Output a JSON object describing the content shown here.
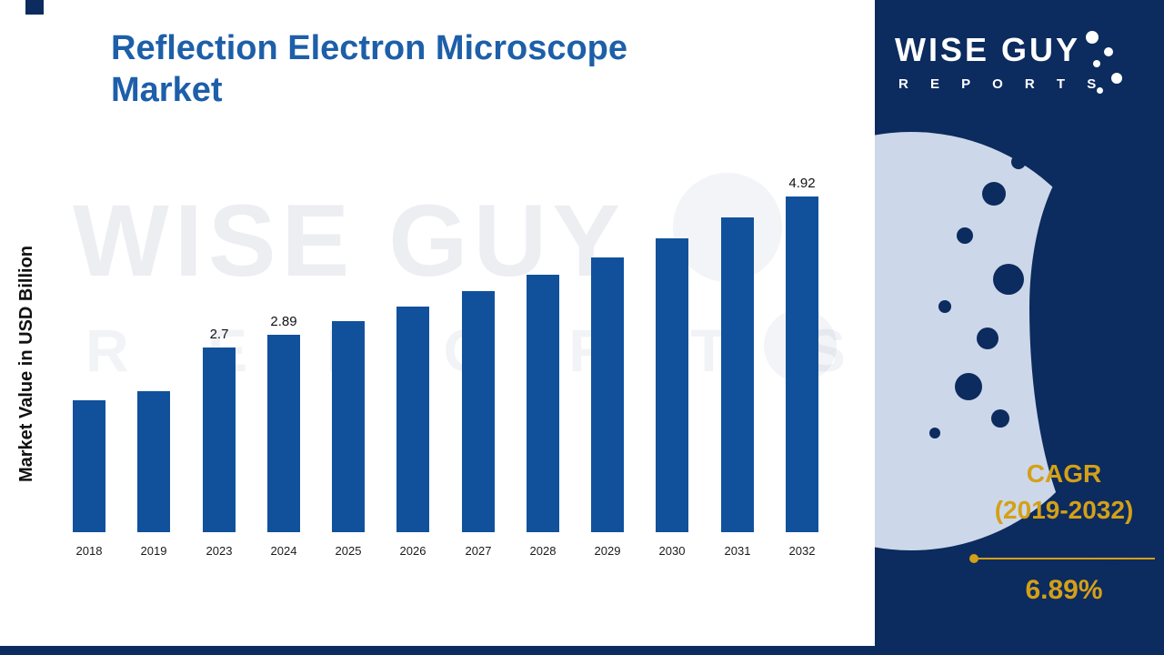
{
  "title": {
    "line1": "Reflection Electron Microscope",
    "line2": "Market"
  },
  "ylabel": "Market Value in USD Billion",
  "watermark": {
    "line1": "WISE GUY",
    "line2": "R E P O R T S"
  },
  "logo": {
    "line1": "WISE GUY",
    "line2": "R E P O R T S"
  },
  "cagr": {
    "label_line1": "CAGR",
    "label_line2": "(2019-2032)",
    "value": "6.89%"
  },
  "colors": {
    "bar_blue": "#11519c",
    "panel_navy": "#0c2b5e",
    "gold": "#d4a017",
    "title_blue": "#1d5fa9"
  },
  "chart_data": {
    "type": "bar",
    "title": "Reflection Electron Microscope Market",
    "xlabel": "",
    "ylabel": "Market Value in USD Billion",
    "categories": [
      "2018",
      "2019",
      "2023",
      "2024",
      "2025",
      "2026",
      "2027",
      "2028",
      "2029",
      "2030",
      "2031",
      "2032"
    ],
    "values": [
      1.93,
      2.07,
      2.7,
      2.89,
      3.09,
      3.3,
      3.53,
      3.77,
      4.03,
      4.31,
      4.61,
      4.92
    ],
    "data_labels": [
      "",
      "",
      "2.7",
      "2.89",
      "",
      "",
      "",
      "",
      "",
      "",
      "",
      "4.92"
    ],
    "ylim": [
      0,
      5.5
    ],
    "grid": false,
    "legend": "none",
    "bar_color": "#11519c"
  }
}
